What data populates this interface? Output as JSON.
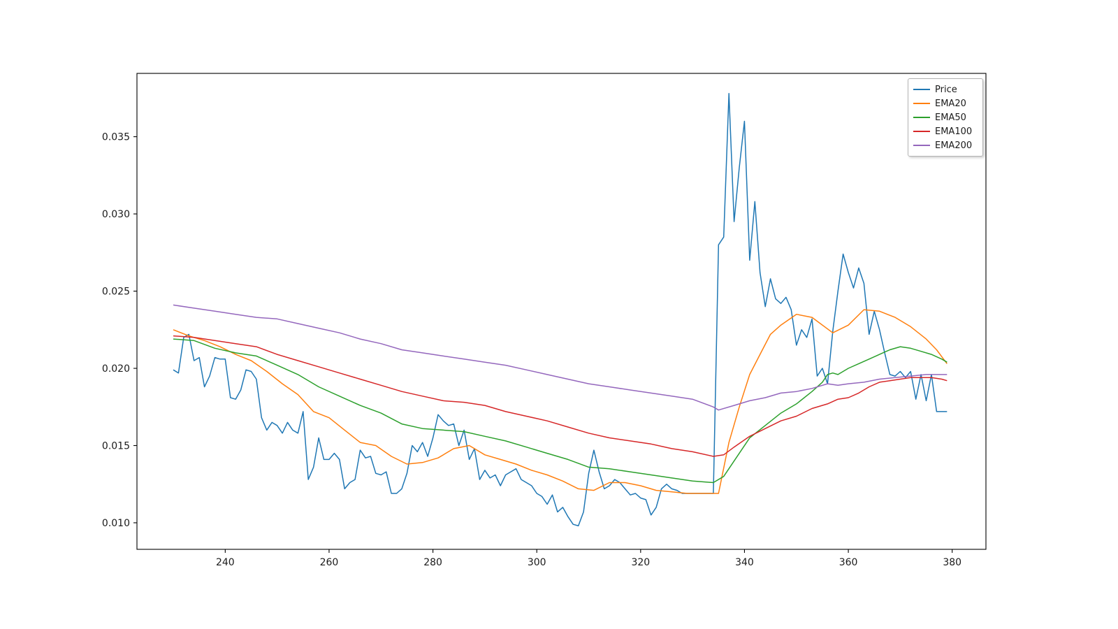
{
  "figure": {
    "background": "#ffffff"
  },
  "legend": {
    "position": "upper-right",
    "entries": [
      {
        "label": "Price",
        "color": "#1f77b4"
      },
      {
        "label": "EMA20",
        "color": "#ff7f0e"
      },
      {
        "label": "EMA50",
        "color": "#2ca02c"
      },
      {
        "label": "EMA100",
        "color": "#d62728"
      },
      {
        "label": "EMA200",
        "color": "#9467bd"
      }
    ]
  },
  "chart_data": {
    "type": "line",
    "title": "",
    "xlabel": "",
    "ylabel": "",
    "grid": false,
    "legend_position": "upper right",
    "xlim": [
      223,
      386.5
    ],
    "ylim": [
      0.00828,
      0.0391
    ],
    "xticks": [
      240,
      260,
      280,
      300,
      320,
      340,
      360,
      380
    ],
    "yticks": [
      0.01,
      0.015,
      0.02,
      0.025,
      0.03,
      0.035
    ],
    "series": [
      {
        "name": "Price",
        "color": "#1f77b4",
        "x_start": 230,
        "x_step": 1,
        "y": [
          0.0199,
          0.0197,
          0.022,
          0.0222,
          0.0205,
          0.0207,
          0.0188,
          0.0195,
          0.0207,
          0.0206,
          0.0206,
          0.0181,
          0.018,
          0.0186,
          0.0199,
          0.0198,
          0.0193,
          0.0168,
          0.016,
          0.0165,
          0.0163,
          0.0158,
          0.0165,
          0.016,
          0.0158,
          0.0172,
          0.0128,
          0.0136,
          0.0155,
          0.0141,
          0.0141,
          0.0145,
          0.0141,
          0.0122,
          0.0126,
          0.0128,
          0.0147,
          0.0142,
          0.0143,
          0.0132,
          0.0131,
          0.0133,
          0.0119,
          0.0119,
          0.0122,
          0.0132,
          0.015,
          0.0146,
          0.0152,
          0.0143,
          0.0155,
          0.017,
          0.0166,
          0.0163,
          0.0164,
          0.015,
          0.016,
          0.0141,
          0.0148,
          0.0128,
          0.0134,
          0.0129,
          0.0131,
          0.0124,
          0.0131,
          0.0133,
          0.0135,
          0.0128,
          0.0126,
          0.0124,
          0.0119,
          0.0117,
          0.0112,
          0.0118,
          0.0107,
          0.011,
          0.0104,
          0.0099,
          0.0098,
          0.0107,
          0.0132,
          0.0147,
          0.0133,
          0.0122,
          0.0124,
          0.0128,
          0.0126,
          0.0122,
          0.0118,
          0.0119,
          0.0116,
          0.0115,
          0.0105,
          0.011,
          0.0122,
          0.0125,
          0.0122,
          0.0121,
          0.0119,
          0.0119,
          0.0119,
          0.0119,
          0.0119,
          0.0119,
          0.0119,
          0.028,
          0.0285,
          0.0378,
          0.0295,
          0.033,
          0.036,
          0.027,
          0.0308,
          0.0262,
          0.024,
          0.0258,
          0.0245,
          0.0242,
          0.0246,
          0.0238,
          0.0215,
          0.0225,
          0.022,
          0.0232,
          0.0195,
          0.02,
          0.019,
          0.0224,
          0.025,
          0.0274,
          0.0262,
          0.0252,
          0.0265,
          0.0255,
          0.0222,
          0.0237,
          0.0225,
          0.021,
          0.0196,
          0.0195,
          0.0198,
          0.0194,
          0.0198,
          0.018,
          0.0196,
          0.0179,
          0.0196,
          0.0172,
          0.0172,
          0.0172
        ]
      },
      {
        "name": "EMA20",
        "color": "#ff7f0e",
        "x": [
          230,
          233,
          236,
          239,
          242,
          245,
          248,
          251,
          254,
          257,
          260,
          263,
          266,
          269,
          272,
          275,
          278,
          281,
          284,
          287,
          290,
          293,
          296,
          299,
          302,
          305,
          308,
          311,
          314,
          317,
          320,
          323,
          326,
          329,
          332,
          335,
          337,
          339,
          341,
          343,
          345,
          347,
          350,
          353,
          357,
          360,
          363,
          366,
          369,
          372,
          375,
          377,
          379
        ],
        "y": [
          0.0225,
          0.0221,
          0.0218,
          0.0214,
          0.0209,
          0.0205,
          0.0198,
          0.019,
          0.0183,
          0.0172,
          0.0168,
          0.016,
          0.0152,
          0.015,
          0.0143,
          0.0138,
          0.0139,
          0.0142,
          0.0148,
          0.015,
          0.0144,
          0.0141,
          0.0138,
          0.0134,
          0.0131,
          0.0127,
          0.0122,
          0.0121,
          0.0126,
          0.0126,
          0.0124,
          0.0121,
          0.012,
          0.0119,
          0.0119,
          0.0119,
          0.0152,
          0.0175,
          0.0196,
          0.0209,
          0.0222,
          0.0228,
          0.0235,
          0.0233,
          0.0223,
          0.0228,
          0.0238,
          0.0237,
          0.0233,
          0.0227,
          0.0219,
          0.0212,
          0.0203
        ]
      },
      {
        "name": "EMA50",
        "color": "#2ca02c",
        "x": [
          230,
          234,
          238,
          242,
          246,
          250,
          254,
          258,
          262,
          266,
          270,
          274,
          278,
          282,
          286,
          290,
          294,
          298,
          302,
          306,
          310,
          314,
          318,
          322,
          326,
          330,
          334,
          336,
          338,
          341,
          344,
          347,
          350,
          353,
          355,
          356,
          357,
          358,
          360,
          362,
          364,
          366,
          368,
          370,
          372,
          374,
          376,
          378,
          379
        ],
        "y": [
          0.0219,
          0.0218,
          0.0213,
          0.021,
          0.0208,
          0.0202,
          0.0196,
          0.0188,
          0.0182,
          0.0176,
          0.0171,
          0.0164,
          0.0161,
          0.016,
          0.0159,
          0.0156,
          0.0153,
          0.0149,
          0.0145,
          0.0141,
          0.0136,
          0.0135,
          0.0133,
          0.0131,
          0.0129,
          0.0127,
          0.0126,
          0.013,
          0.014,
          0.0155,
          0.0163,
          0.0171,
          0.0177,
          0.0185,
          0.0191,
          0.0196,
          0.0197,
          0.0196,
          0.02,
          0.0203,
          0.0206,
          0.0209,
          0.0212,
          0.0214,
          0.0213,
          0.0211,
          0.0209,
          0.0206,
          0.0204
        ]
      },
      {
        "name": "EMA100",
        "color": "#d62728",
        "x": [
          230,
          234,
          238,
          242,
          246,
          250,
          254,
          258,
          262,
          266,
          270,
          274,
          278,
          282,
          286,
          290,
          294,
          298,
          302,
          306,
          310,
          314,
          318,
          322,
          326,
          330,
          334,
          336,
          338,
          341,
          344,
          347,
          350,
          353,
          356,
          358,
          360,
          362,
          364,
          366,
          368,
          370,
          372,
          374,
          376,
          378,
          379
        ],
        "y": [
          0.0221,
          0.022,
          0.0218,
          0.0216,
          0.0214,
          0.0209,
          0.0205,
          0.0201,
          0.0197,
          0.0193,
          0.0189,
          0.0185,
          0.0182,
          0.0179,
          0.0178,
          0.0176,
          0.0172,
          0.0169,
          0.0166,
          0.0162,
          0.0158,
          0.0155,
          0.0153,
          0.0151,
          0.0148,
          0.0146,
          0.0143,
          0.0144,
          0.0149,
          0.0156,
          0.0161,
          0.0166,
          0.0169,
          0.0174,
          0.0177,
          0.018,
          0.0181,
          0.0184,
          0.0188,
          0.0191,
          0.0192,
          0.0193,
          0.0194,
          0.0194,
          0.0194,
          0.0193,
          0.0192
        ]
      },
      {
        "name": "EMA200",
        "color": "#9467bd",
        "x": [
          230,
          234,
          238,
          242,
          246,
          250,
          254,
          258,
          262,
          266,
          270,
          274,
          278,
          282,
          286,
          290,
          294,
          298,
          302,
          306,
          310,
          314,
          318,
          322,
          326,
          330,
          334,
          335,
          338,
          341,
          344,
          347,
          350,
          353,
          356,
          358,
          360,
          363,
          366,
          369,
          372,
          375,
          378,
          379
        ],
        "y": [
          0.0241,
          0.0239,
          0.0237,
          0.0235,
          0.0233,
          0.0232,
          0.0229,
          0.0226,
          0.0223,
          0.0219,
          0.0216,
          0.0212,
          0.021,
          0.0208,
          0.0206,
          0.0204,
          0.0202,
          0.0199,
          0.0196,
          0.0193,
          0.019,
          0.0188,
          0.0186,
          0.0184,
          0.0182,
          0.018,
          0.0175,
          0.0173,
          0.0176,
          0.0179,
          0.0181,
          0.0184,
          0.0185,
          0.0187,
          0.019,
          0.0189,
          0.019,
          0.0191,
          0.0193,
          0.0194,
          0.0195,
          0.0196,
          0.0196,
          0.0196
        ]
      }
    ]
  }
}
